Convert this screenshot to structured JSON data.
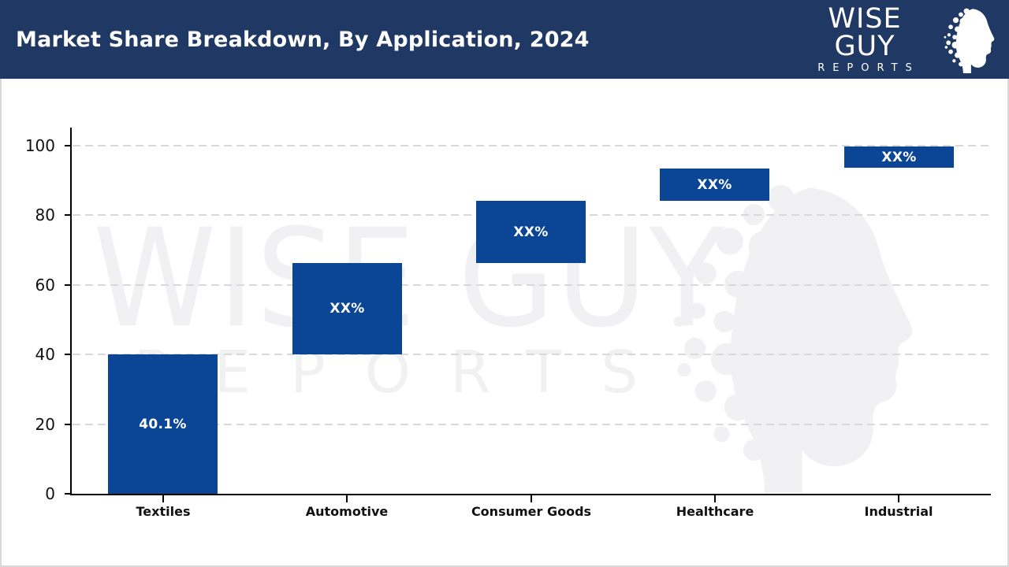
{
  "header": {
    "title": "Market Share Breakdown, By Application, 2024",
    "logo_line1": "WISE GUY",
    "logo_line2": "REPORTS"
  },
  "watermark": {
    "line1": "WISE GUY",
    "line2": "REPORTS"
  },
  "colors": {
    "header_bg": "#1f3864",
    "bar_blue": "#0b4596",
    "gridline_gray": "#d9d9d9",
    "watermark_gray": "#f1f1f3",
    "axis_black": "#000000"
  },
  "chart_data": {
    "type": "bar",
    "subtype": "waterfall",
    "title": "Market Share Breakdown, By Application, 2024",
    "categories": [
      "Textiles",
      "Automotive",
      "Consumer Goods",
      "Healthcare",
      "Industrial"
    ],
    "segments": [
      {
        "category": "Textiles",
        "start": 0,
        "end": 40.1,
        "label": "40.1%"
      },
      {
        "category": "Automotive",
        "start": 40.1,
        "end": 66.4,
        "label": "XX%"
      },
      {
        "category": "Consumer Goods",
        "start": 66.4,
        "end": 84.2,
        "label": "XX%"
      },
      {
        "category": "Healthcare",
        "start": 84.2,
        "end": 93.5,
        "label": "XX%"
      },
      {
        "category": "Industrial",
        "start": 93.5,
        "end": 99.7,
        "label": "XX%"
      }
    ],
    "yticks": [
      0,
      20,
      40,
      60,
      80,
      100
    ],
    "ylim": [
      0,
      105
    ],
    "xlabel": "",
    "ylabel": "",
    "grid": "horizontal dashed",
    "legend": "none"
  }
}
